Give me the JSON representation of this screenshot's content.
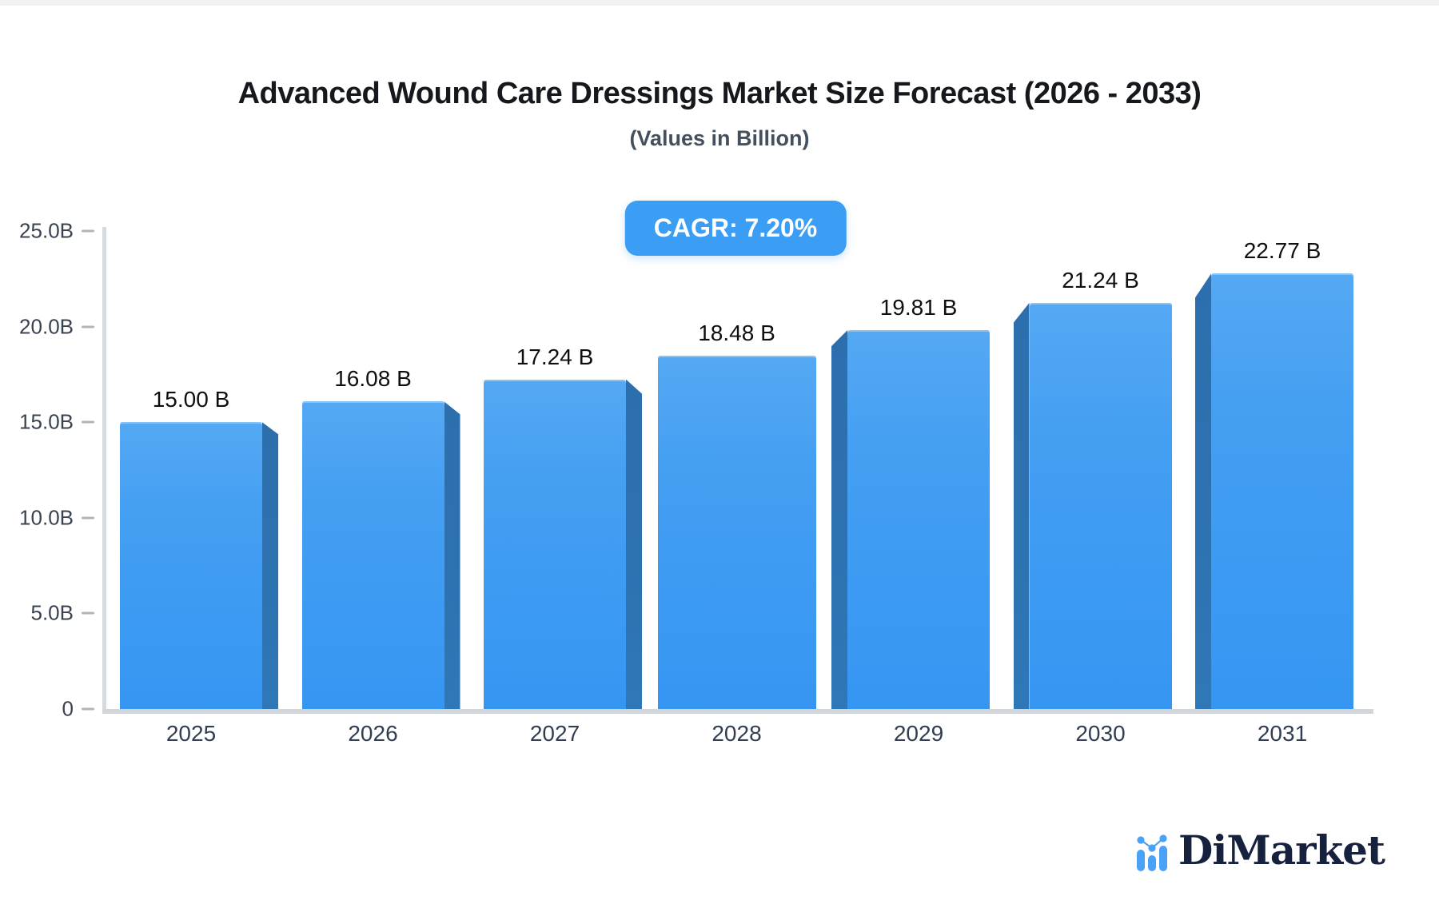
{
  "page": {
    "background": "#ffffff"
  },
  "header": {
    "title": "Advanced Wound Care Dressings Market Size Forecast (2026 - 2033)",
    "subtitle": "(Values in Billion)"
  },
  "badge": {
    "label": "CAGR: 7.20%"
  },
  "chart_data": {
    "type": "bar",
    "title": "Advanced Wound Care Dressings Market Size Forecast (2026 - 2033)",
    "subtitle": "(Values in Billion)",
    "cagr_label": "CAGR: 7.20%",
    "categories": [
      "2025",
      "2026",
      "2027",
      "2028",
      "2029",
      "2030",
      "2031"
    ],
    "values": [
      15.0,
      16.08,
      17.24,
      18.48,
      19.81,
      21.24,
      22.77
    ],
    "value_labels": [
      "15.00 B",
      "16.08 B",
      "17.24 B",
      "18.48 B",
      "19.81 B",
      "21.24 B",
      "22.77 B"
    ],
    "unit": "Billion",
    "ylim": [
      0,
      25
    ],
    "y_ticks": [
      {
        "value": 25,
        "label": "25.0B"
      },
      {
        "value": 20,
        "label": "20.0B"
      },
      {
        "value": 15,
        "label": "15.0B"
      },
      {
        "value": 10,
        "label": "10.0B"
      },
      {
        "value": 5,
        "label": "5.0B"
      },
      {
        "value": 0,
        "label": "0"
      }
    ],
    "grid": "off",
    "legend": "none",
    "bar_style": "3d-perspective-center"
  },
  "logo": {
    "text": "DiMarket",
    "icon": "mini-bar-chart-with-dots"
  },
  "colors": {
    "bar_fill_top": "#55a9f3",
    "bar_fill_bottom": "#3596f2",
    "bar_side": "#2d72b1",
    "badge_bg": "#3b9df4",
    "badge_text": "#ffffff",
    "title_text": "#15181d",
    "subtitle_text": "#45505e",
    "axis_text": "#39424f",
    "value_label_text": "#0e0f11",
    "axis_line": "#d7dadd",
    "logo_text": "#16213e",
    "logo_icon": "#4aa2f7"
  }
}
